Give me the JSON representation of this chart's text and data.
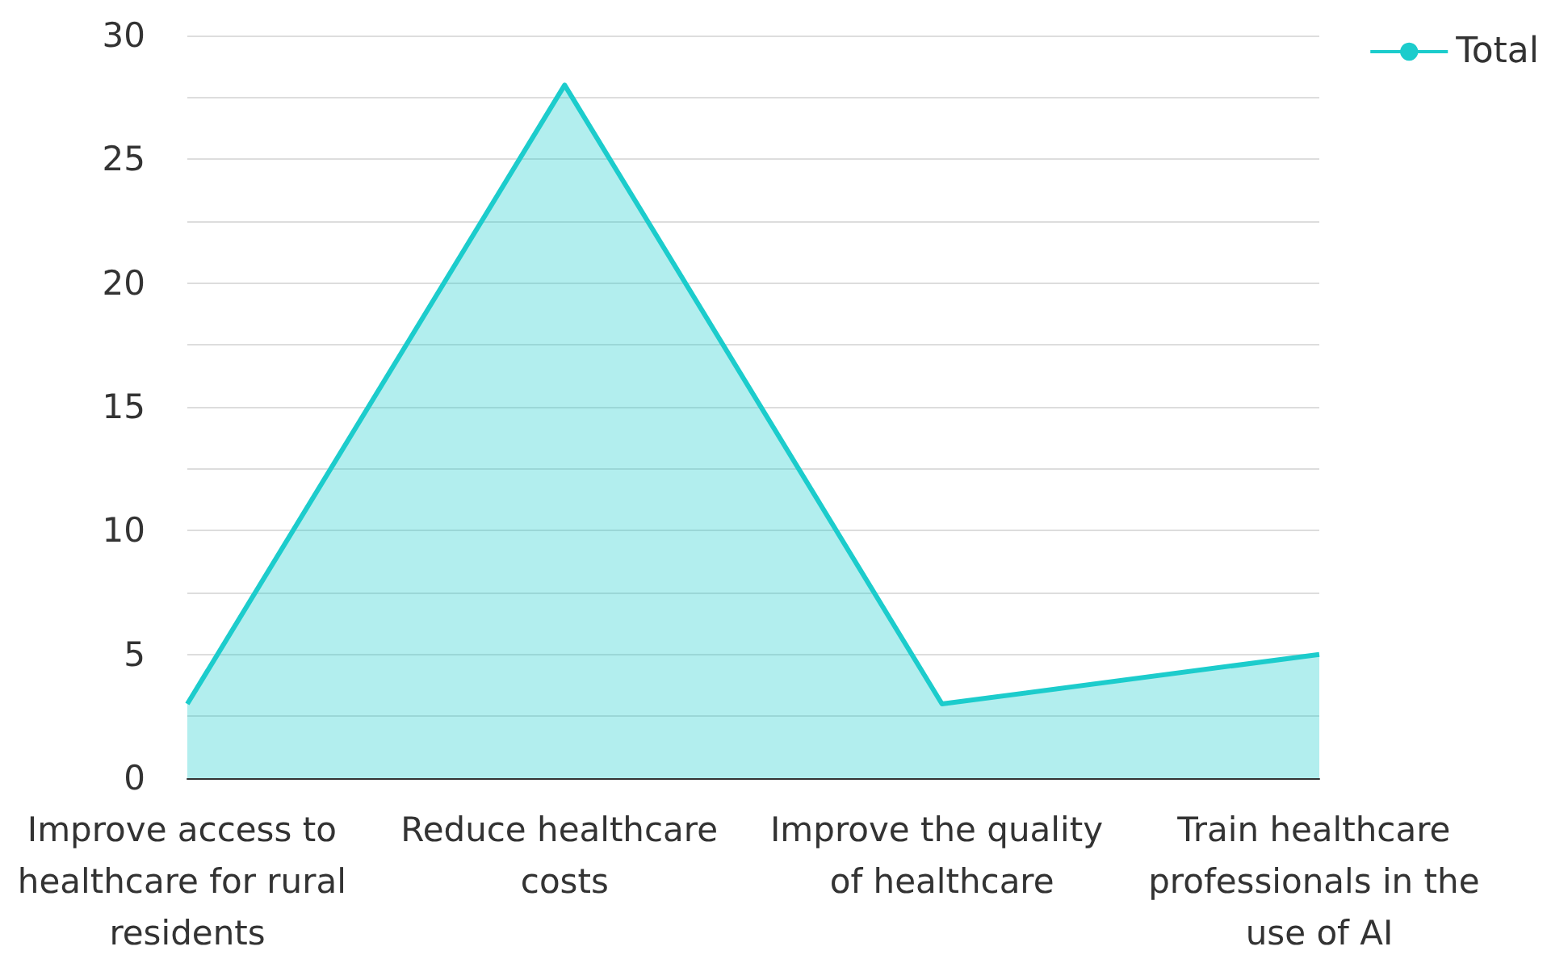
{
  "chart_data": {
    "type": "area",
    "categories": [
      "Improve access to healthcare for rural residents",
      "Reduce healthcare costs",
      "Improve the quality of healthcare",
      "Train healthcare professionals in the use of AI"
    ],
    "series": [
      {
        "name": "Total",
        "color": "#1ccccc",
        "values": [
          3,
          28,
          3,
          5
        ]
      }
    ],
    "ylim": [
      0,
      30
    ],
    "yticks": [
      0,
      {
        "value": 2.5,
        "label": null
      },
      5,
      {
        "value": 7.5,
        "label": null
      },
      10,
      {
        "value": 12.5,
        "label": null
      },
      15,
      {
        "value": 17.5,
        "label": null
      },
      20,
      {
        "value": 22.5,
        "label": null
      },
      25,
      {
        "value": 27.5,
        "label": null
      },
      30
    ],
    "grid": "y",
    "legend": "top right",
    "marker": "none"
  }
}
